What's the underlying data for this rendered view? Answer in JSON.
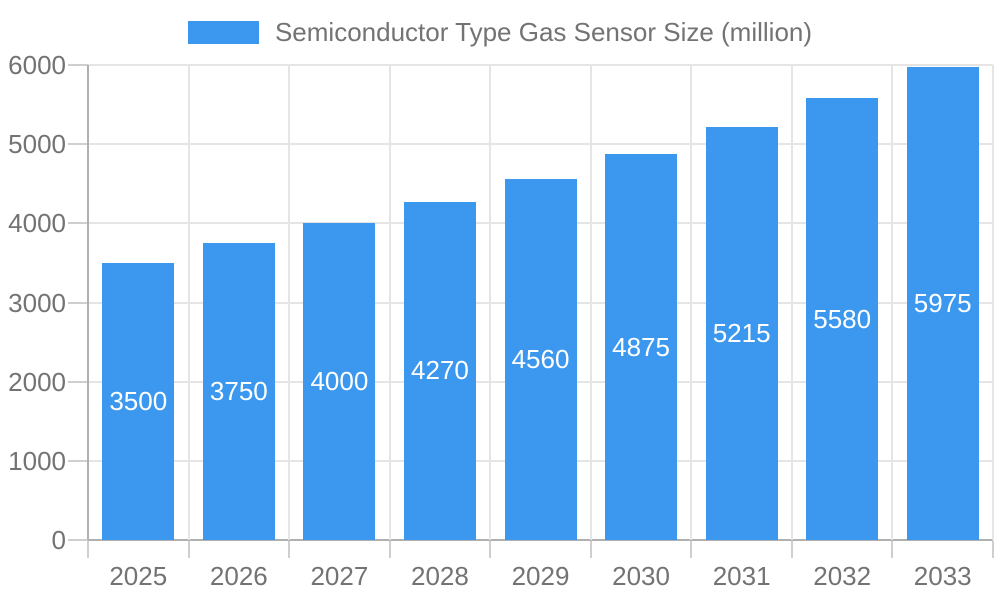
{
  "chart_data": {
    "type": "bar",
    "title": "Semiconductor Type Gas Sensor Size (million)",
    "legend": {
      "label": "Semiconductor Type Gas Sensor Size (million)",
      "position": "top"
    },
    "categories": [
      "2025",
      "2026",
      "2027",
      "2028",
      "2029",
      "2030",
      "2031",
      "2032",
      "2033"
    ],
    "series": [
      {
        "name": "Semiconductor Type Gas Sensor Size (million)",
        "values": [
          3500,
          3750,
          4000,
          4270,
          4560,
          4875,
          5215,
          5580,
          5975
        ]
      }
    ],
    "value_labels": [
      "3500",
      "3750",
      "4000",
      "4270",
      "4560",
      "4875",
      "5215",
      "5580",
      "5975"
    ],
    "xlabel": "",
    "ylabel": "",
    "ylim": [
      0,
      6000
    ],
    "yticks": [
      0,
      1000,
      2000,
      3000,
      4000,
      5000,
      6000
    ],
    "ytick_labels": [
      "0",
      "1000",
      "2000",
      "3000",
      "4000",
      "5000",
      "6000"
    ],
    "grid": true,
    "colors": {
      "bar": "#3B98EE",
      "value_label": "#FFFFFF",
      "axis_text": "#737373",
      "legend_text": "#737373",
      "grid_line": "#E5E5E5",
      "axis_line": "#B0B0B0",
      "tick": "#CFCFCF",
      "background": "#FFFFFF"
    }
  }
}
